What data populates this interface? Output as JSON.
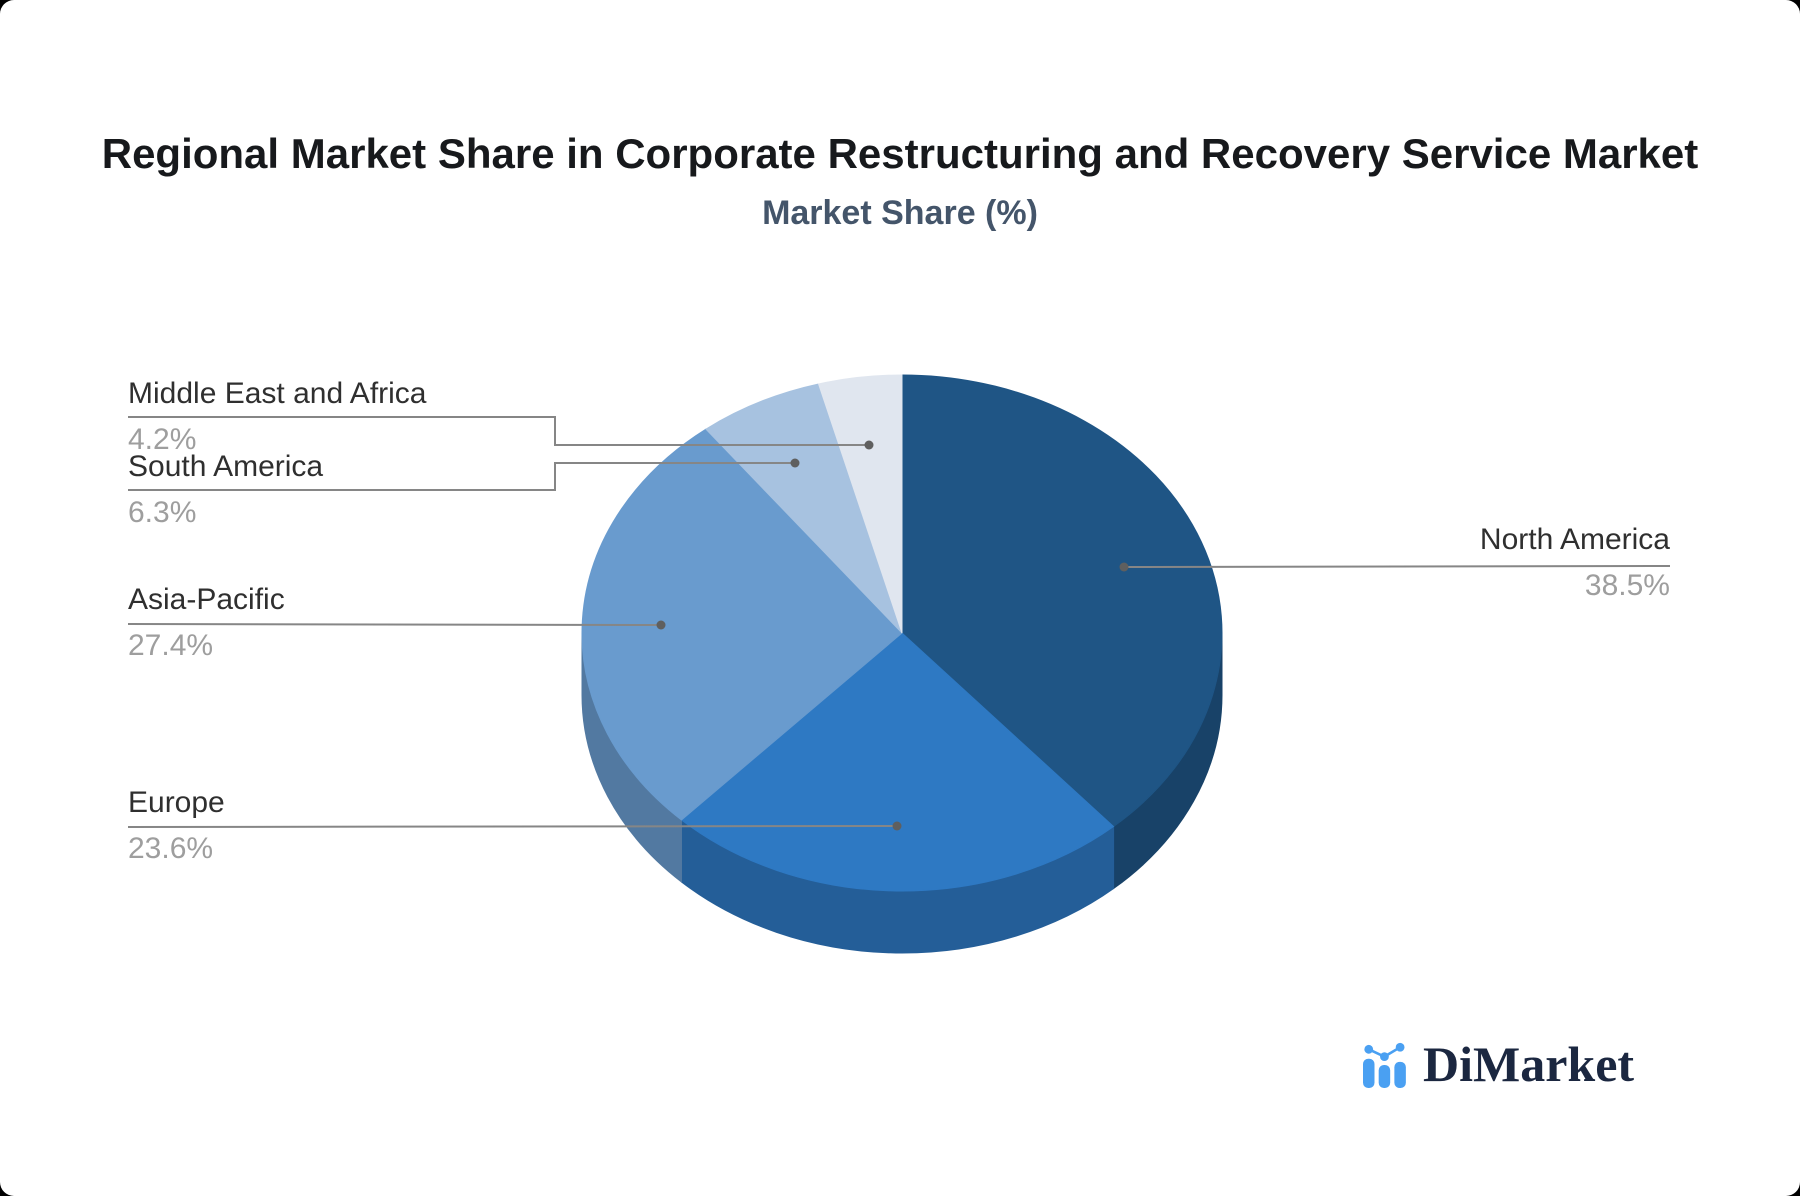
{
  "title": "Regional Market Share in Corporate Restructuring and Recovery Service Market",
  "subtitle": "Market Share (%)",
  "chart_data": {
    "type": "pie",
    "title": "Regional Market Share in Corporate Restructuring and Recovery Service Market",
    "subtitle": "Market Share (%)",
    "unit": "%",
    "effect_3d": true,
    "direction": "clockwise",
    "start_angle_deg": 0,
    "legend_position": "none",
    "labels_shown": true,
    "slices": [
      {
        "label": "North America",
        "value": 38.5,
        "value_label": "38.5%",
        "color": "#1f5585"
      },
      {
        "label": "Europe",
        "value": 23.6,
        "value_label": "23.6%",
        "color": "#2e79c3"
      },
      {
        "label": "Asia-Pacific",
        "value": 27.4,
        "value_label": "27.4%",
        "color": "#699bce"
      },
      {
        "label": "South America",
        "value": 6.3,
        "value_label": "6.3%",
        "color": "#a7c2e0"
      },
      {
        "label": "Middle East and Africa",
        "value": 4.2,
        "value_label": "4.2%",
        "color": "#e0e6ef"
      }
    ]
  },
  "watermark": {
    "brand": "DiMarket",
    "icon": "bar-chart-logo-icon",
    "text_color": "#1b2740",
    "accent_color": "#4aa0f2"
  },
  "colors": {
    "background": "#ffffff",
    "title_text": "#17191c",
    "subtitle_text": "#44556a",
    "label_text": "#2f2f2f",
    "value_text": "#9e9e9e",
    "connector_line": "#868686",
    "connector_dot": "#5f5f5f"
  }
}
